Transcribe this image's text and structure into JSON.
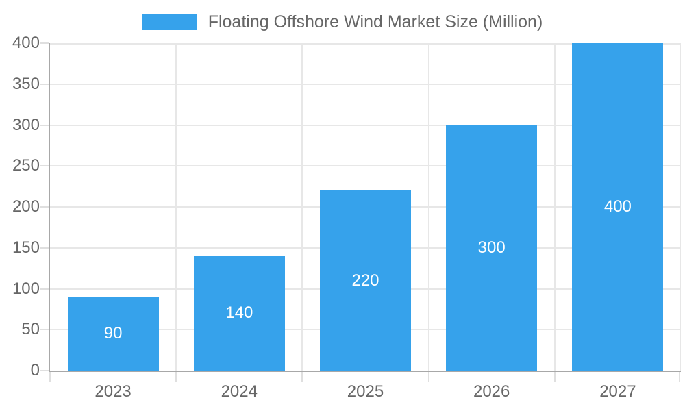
{
  "chart_data": {
    "type": "bar",
    "title": "Floating Offshore Wind Market Size (Million)",
    "categories": [
      "2023",
      "2024",
      "2025",
      "2026",
      "2027"
    ],
    "values": [
      90,
      140,
      220,
      300,
      400
    ],
    "series": [
      {
        "name": "Floating Offshore Wind Market Size (Million)",
        "values": [
          90,
          140,
          220,
          300,
          400
        ]
      }
    ],
    "xlabel": "",
    "ylabel": "",
    "ylim": [
      0,
      400
    ],
    "yticks": [
      0,
      50,
      100,
      150,
      200,
      250,
      300,
      350,
      400
    ],
    "grid": true,
    "legend_position": "top",
    "bar_color": "#36A2EB",
    "data_label_color": "#FFFFFF"
  },
  "colors": {
    "axis_line": "#A8A8A8",
    "gridline": "#E7E7E7",
    "tick_mark": "#DFDFDF",
    "tick_text": "#666666",
    "background": "#FFFFFF"
  }
}
